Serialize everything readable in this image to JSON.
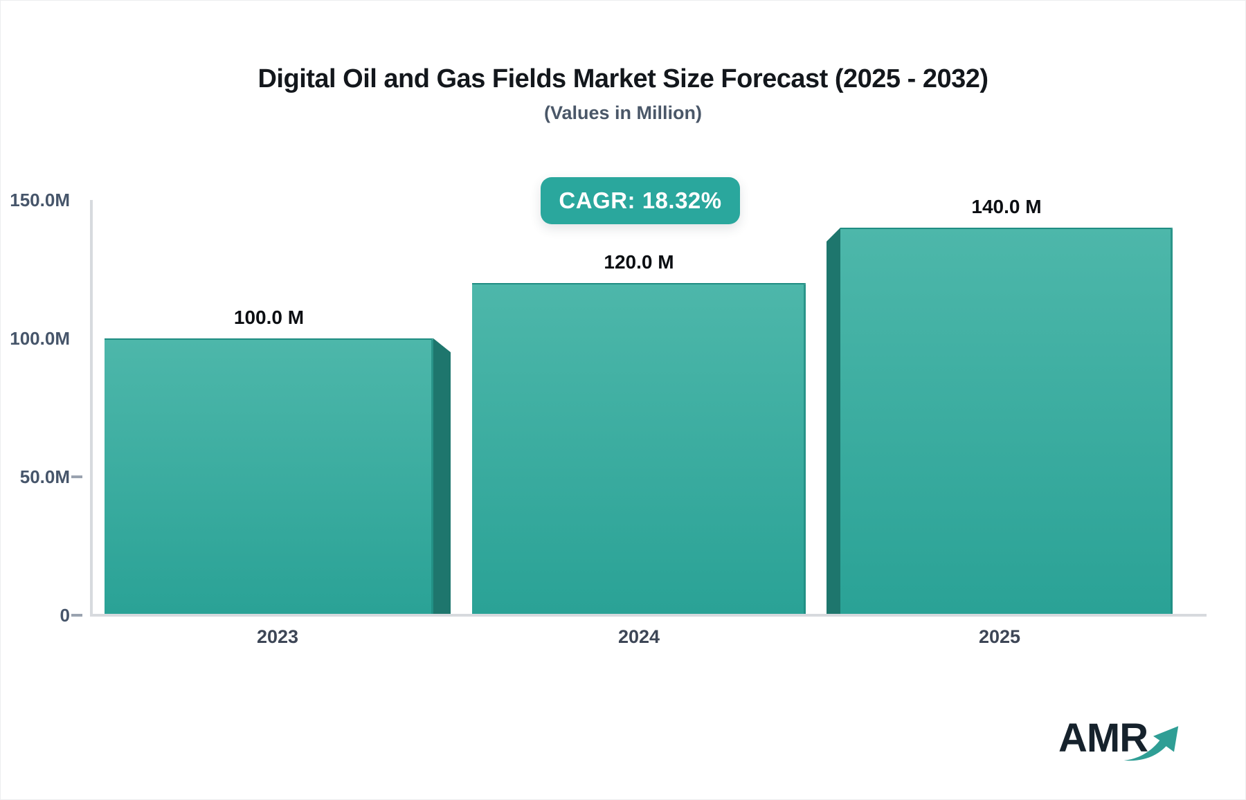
{
  "header": {
    "title": "Digital Oil and Gas Fields Market Size Forecast (2025 - 2032)",
    "subtitle": "(Values in Million)"
  },
  "badge": {
    "label": "CAGR: 18.32%",
    "background": "#2aa79d",
    "text_color": "#ffffff"
  },
  "chart_data": {
    "type": "bar",
    "title": "Digital Oil and Gas Fields Market Size Forecast (2025 - 2032)",
    "subtitle": "(Values in Million)",
    "unit": "Million",
    "categories": [
      "2023",
      "2024",
      "2025"
    ],
    "values": [
      100.0,
      120.0,
      140.0
    ],
    "value_labels": [
      "100.0 M",
      "120.0 M",
      "140.0 M"
    ],
    "annotation": "CAGR: 18.32%",
    "ylim": [
      0,
      150
    ],
    "yticks": [
      {
        "value": 150,
        "label": "150.0M",
        "tick_mark": false
      },
      {
        "value": 100,
        "label": "100.0M",
        "tick_mark": false
      },
      {
        "value": 50,
        "label": "50.0M",
        "tick_mark": true
      },
      {
        "value": 0,
        "label": "0",
        "tick_mark": true
      }
    ],
    "grid": false,
    "legend": "none",
    "colors": {
      "bar_gradient_top": "#4db7aa",
      "bar_gradient_bottom": "#2aa296",
      "bar_side_face": "#1e766d",
      "bar_top_edge": "#1f8d82",
      "axis_line": "#d7dade",
      "tick_label": "#46556a",
      "value_label": "#0b0e12"
    }
  },
  "logo": {
    "text": "AMR",
    "text_color": "#16222c",
    "arrow_color": "#2f9e95"
  }
}
